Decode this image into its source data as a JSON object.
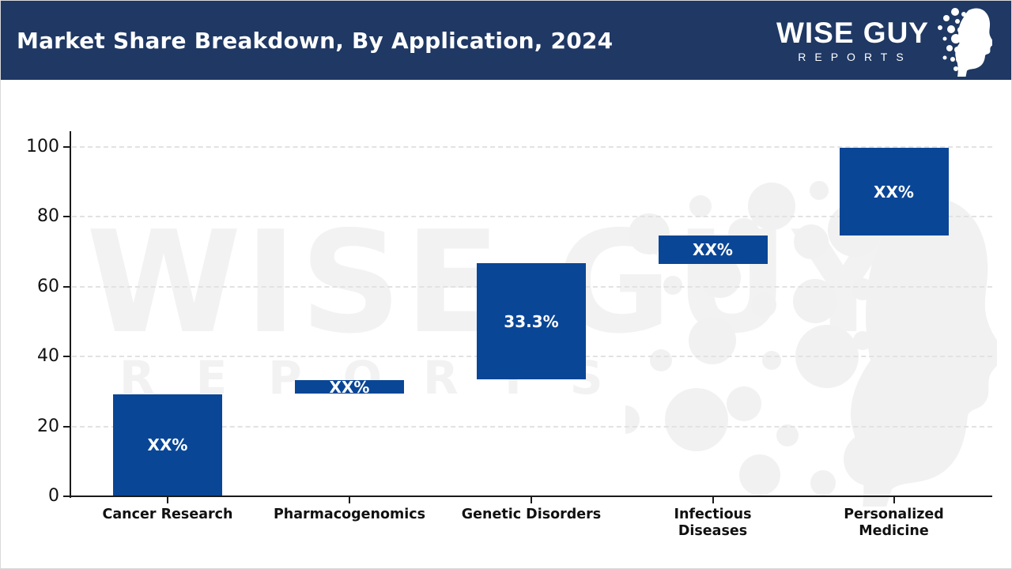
{
  "header": {
    "title": "Market Share Breakdown, By Application, 2024",
    "logo": {
      "line1": "WISE GUY",
      "line2": "REPORTS"
    }
  },
  "watermark": {
    "line1": "WISE GUY",
    "line2": "REPORTS"
  },
  "colors": {
    "header_bg": "#1f3864",
    "bar": "#0a4696",
    "bar_label": "#ffffff",
    "grid": "#e2e2e2",
    "axis": "#1a1a1a",
    "watermark": "#f2f2f2"
  },
  "chart_data": {
    "type": "bar",
    "subtype": "waterfall",
    "title": "Market Share Breakdown, By Application, 2024",
    "ylabel": "",
    "xlabel": "",
    "ylim": [
      0,
      105
    ],
    "yticks": [
      0,
      20,
      40,
      60,
      80,
      100
    ],
    "grid": "horizontal-dashed",
    "legend": "none",
    "categories": [
      "Cancer Research",
      "Pharmacogenomics",
      "Genetic Disorders",
      "Infectious\nDiseases",
      "Personalized\nMedicine"
    ],
    "segments": [
      {
        "category": "Cancer Research",
        "start": 0,
        "end": 29.2,
        "label": "XX%"
      },
      {
        "category": "Pharmacogenomics",
        "start": 29.3,
        "end": 33.2,
        "label": "XX%"
      },
      {
        "category": "Genetic Disorders",
        "start": 33.4,
        "end": 66.7,
        "label": "33.3%"
      },
      {
        "category": "Infectious Diseases",
        "start": 66.6,
        "end": 74.6,
        "label": "XX%"
      },
      {
        "category": "Personalized Medicine",
        "start": 74.6,
        "end": 99.7,
        "label": "XX%"
      }
    ]
  }
}
